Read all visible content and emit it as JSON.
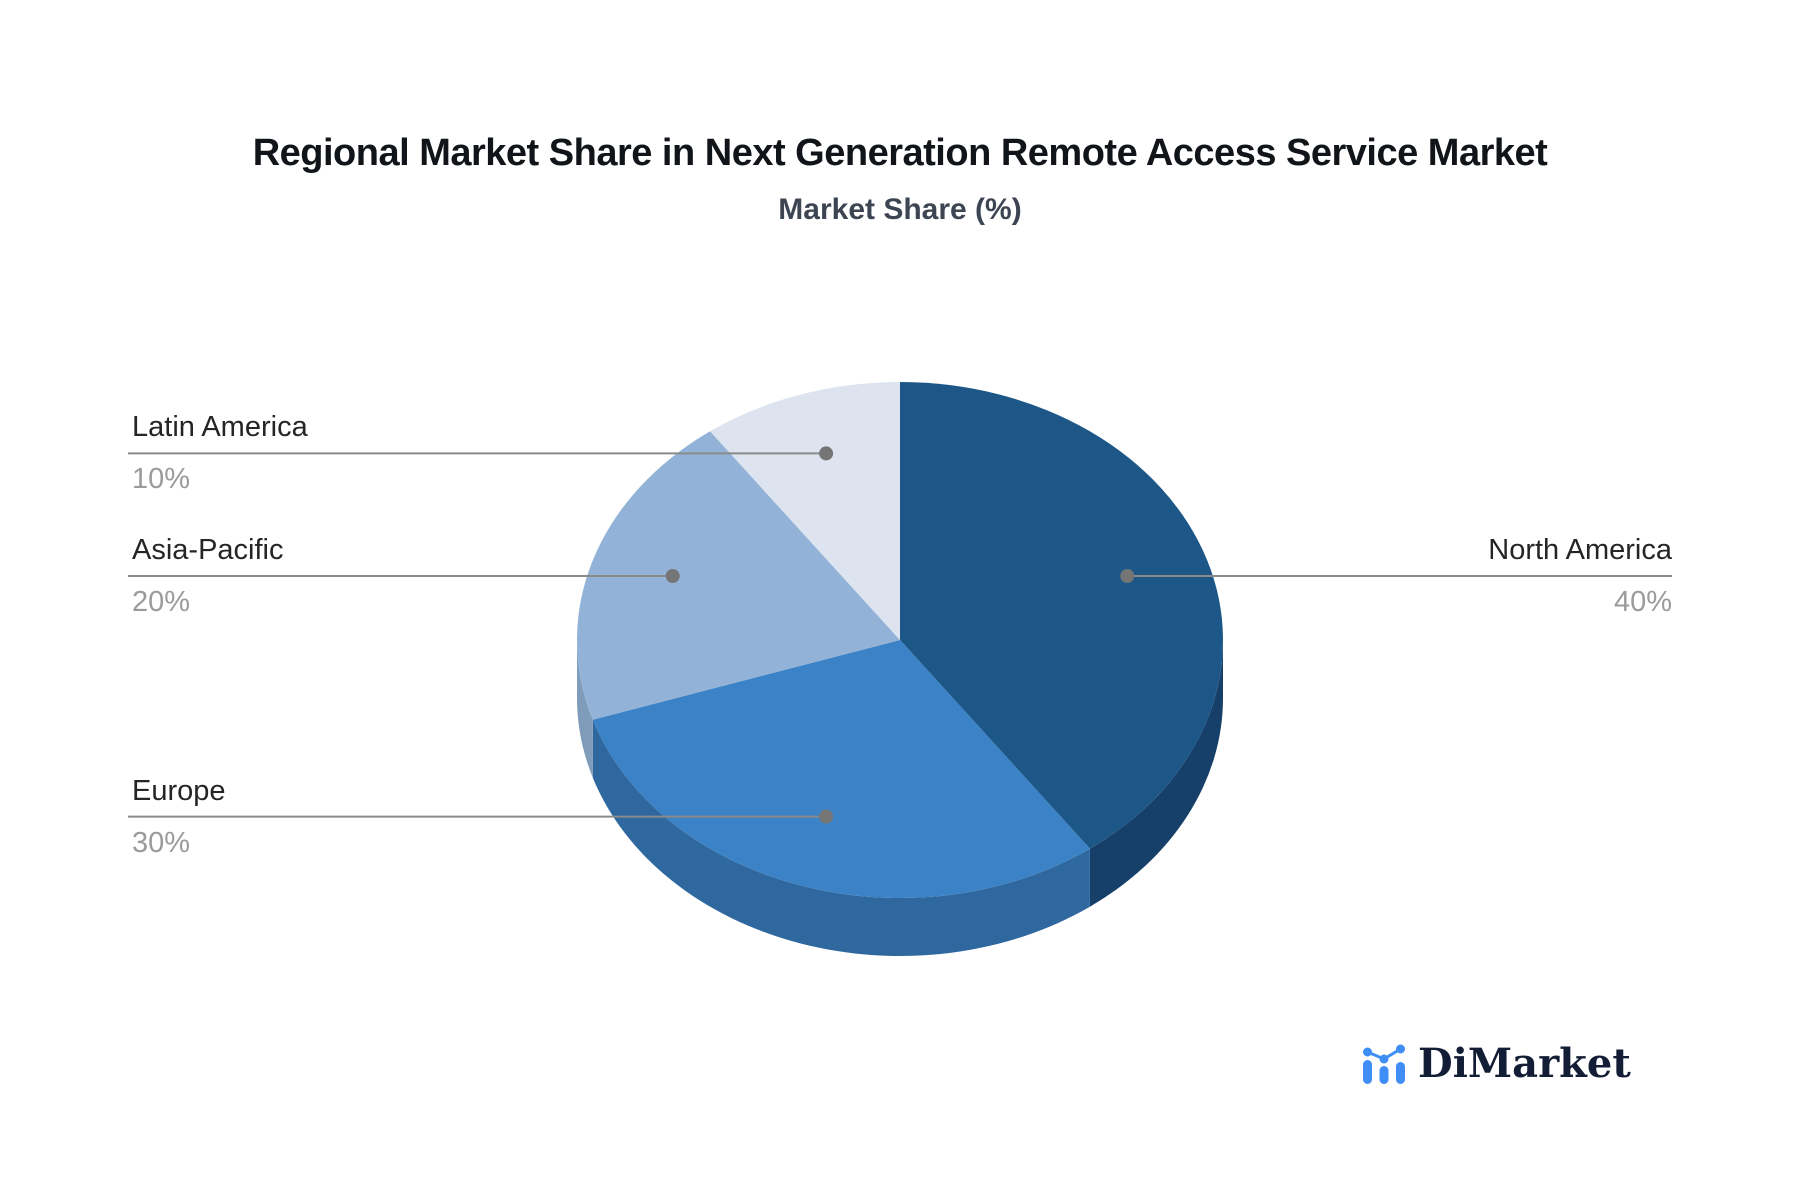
{
  "title": "Regional Market Share in Next Generation Remote Access Service Market",
  "subtitle": "Market Share (%)",
  "chart_data": {
    "type": "pie",
    "style": "3d",
    "title": "Regional Market Share in Next Generation Remote Access Service Market",
    "subtitle": "Market Share (%)",
    "unit": "%",
    "start_angle_deg": 0,
    "direction": "clockwise",
    "legend": "none",
    "slices": [
      {
        "label": "North America",
        "value": 40,
        "display": "40%",
        "color": "#1d5788",
        "side_color": "#164069",
        "label_side": "right"
      },
      {
        "label": "Europe",
        "value": 30,
        "display": "30%",
        "color": "#3b82c6",
        "side_color": "#2f689f",
        "label_side": "left"
      },
      {
        "label": "Asia-Pacific",
        "value": 20,
        "display": "20%",
        "color": "#92b3d7",
        "side_color": "#7f9cbb",
        "label_side": "left"
      },
      {
        "label": "Latin America",
        "value": 10,
        "display": "10%",
        "color": "#dde4ef",
        "side_color": "#c3cddd",
        "label_side": "left"
      }
    ]
  },
  "colors": {
    "background": "#ffffff",
    "title_text": "#111418",
    "subtitle_text": "#3d4553",
    "label_text": "#232527",
    "value_text": "#9b9b9b",
    "leader_line": "#8a8a8a",
    "leader_dot": "#757575",
    "logo_text": "#131e36",
    "logo_icon": "#3e8ef6"
  },
  "logo": {
    "text": "DiMarket",
    "icon": "bar-line-chart-icon"
  }
}
